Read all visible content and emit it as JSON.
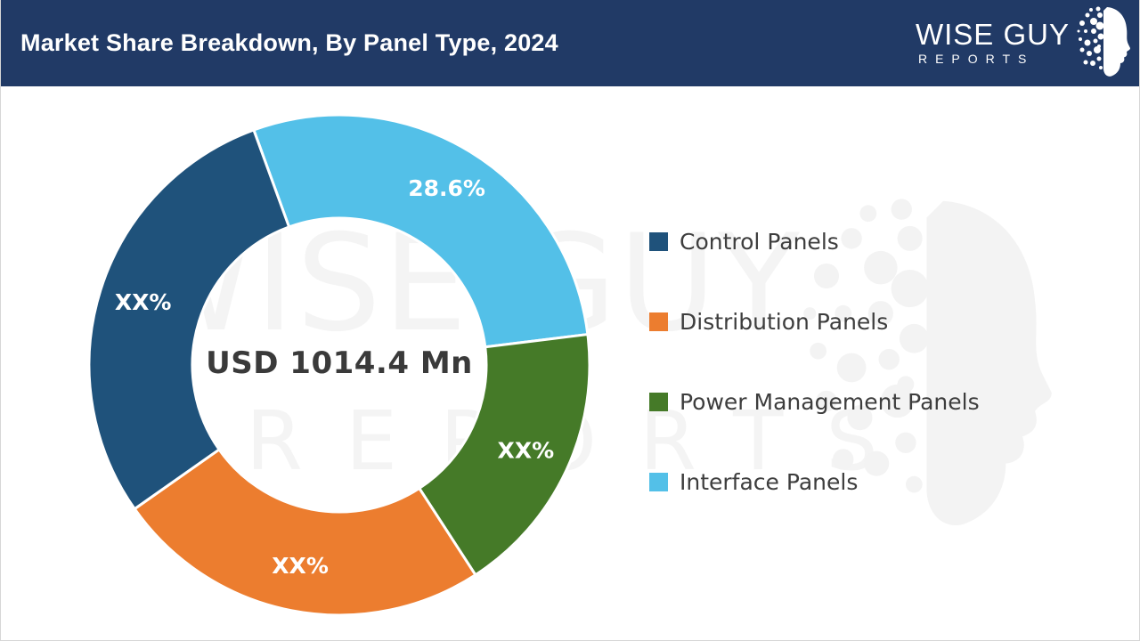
{
  "header": {
    "title": "Market Share Breakdown, By Panel Type, 2024",
    "background_color": "#213a66",
    "logo": {
      "line1": "WISE GUY",
      "line2": "REPORTS"
    }
  },
  "watermark": {
    "line1": "WISE GUY",
    "line2": "REPORTS"
  },
  "chart_data": {
    "type": "donut",
    "title": "Market Share Breakdown, By Panel Type, 2024",
    "center_label": "USD 1014.4 Mn",
    "start_angle_deg": -20,
    "clockwise": true,
    "segments": [
      {
        "name": "Interface Panels",
        "value_pct": 28.6,
        "label": "28.6%",
        "color": "#53c0e8"
      },
      {
        "name": "Power Management Panels",
        "value_pct": 17.8,
        "label": "XX%",
        "color": "#457a28"
      },
      {
        "name": "Distribution Panels",
        "value_pct": 24.4,
        "label": "XX%",
        "color": "#ec7d2f"
      },
      {
        "name": "Control Panels",
        "value_pct": 29.2,
        "label": "XX%",
        "color": "#1f527b"
      }
    ],
    "legend_order": [
      "Control Panels",
      "Distribution Panels",
      "Power Management Panels",
      "Interface Panels"
    ],
    "legend_position": "right",
    "notes": "Only the Interface Panels slice shows a numeric share (28.6%); other slices are masked as XX%."
  }
}
